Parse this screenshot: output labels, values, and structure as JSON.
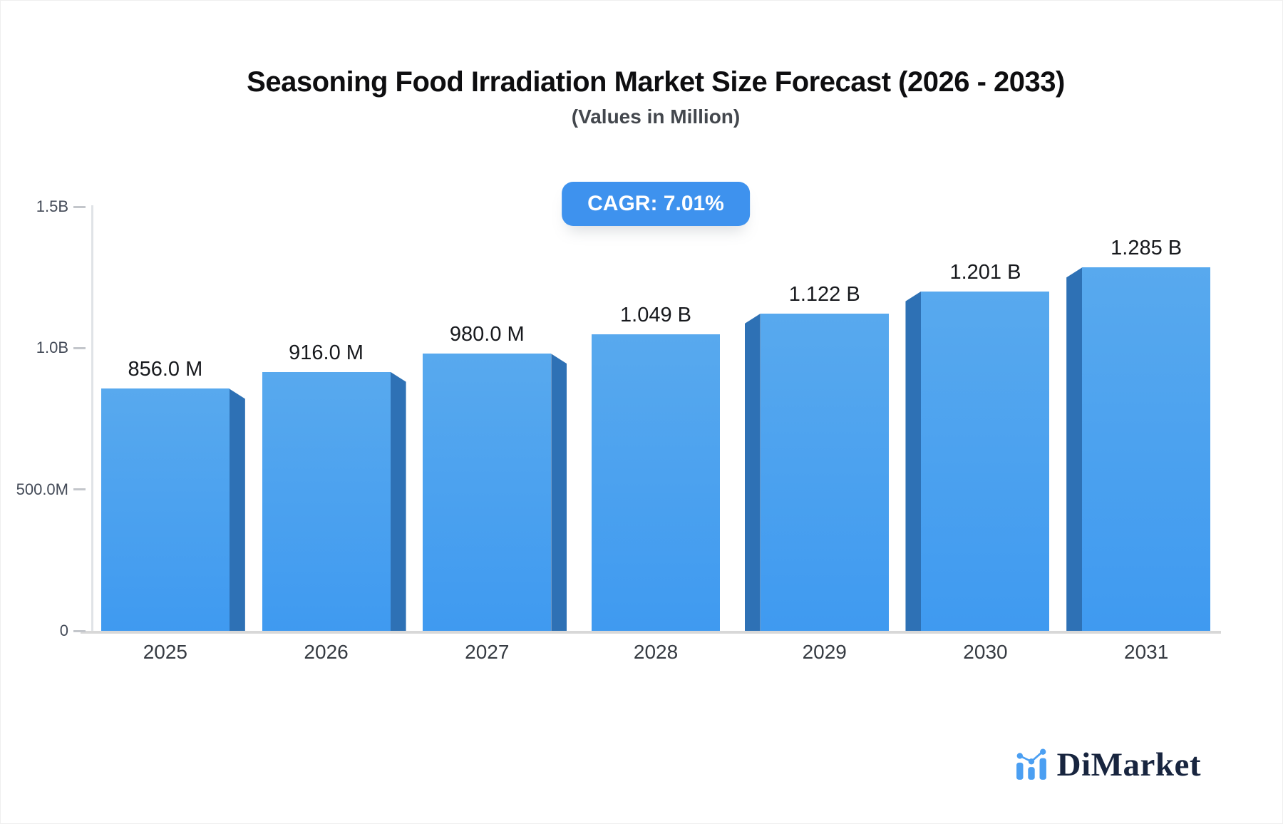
{
  "header": {
    "title": "Seasoning Food Irradiation Market Size Forecast (2026 - 2033)",
    "subtitle": "(Values in Million)",
    "cagr_badge": "CAGR: 7.01%"
  },
  "brand": {
    "name": "DiMarket"
  },
  "chart_data": {
    "type": "bar",
    "title": "Seasoning Food Irradiation Market Size Forecast (2026 - 2033)",
    "subtitle": "(Values in Million)",
    "annotation": "CAGR: 7.01%",
    "values_in": "Million",
    "categories": [
      "2025",
      "2026",
      "2027",
      "2028",
      "2029",
      "2030",
      "2031"
    ],
    "values": [
      856,
      916,
      980,
      1049,
      1122,
      1201,
      1285
    ],
    "value_labels": [
      "856.0 M",
      "916.0 M",
      "980.0 M",
      "1.049 B",
      "1.122 B",
      "1.201 B",
      "1.285 B"
    ],
    "ylim": [
      0,
      1500
    ],
    "yticks": [
      {
        "value": 0,
        "label": "0"
      },
      {
        "value": 500,
        "label": "500.0M"
      },
      {
        "value": 1000,
        "label": "1.0B"
      },
      {
        "value": 1500,
        "label": "1.5B"
      }
    ],
    "grid": false,
    "legend": "none",
    "style_3d": "perspective toward center: left bars extrude right, right bars extrude left, middle bar flat",
    "colors": {
      "bar_top": "#58a9ee",
      "bar_bottom": "#3f9af0",
      "bar_side": "#2e71b5",
      "badge_blue": "#3e92ee",
      "axis_line": "#e0e3e7",
      "baseline": "#d8d8d8",
      "logo_blue": "#4b9ff2",
      "logo_navy": "#18253f"
    }
  }
}
